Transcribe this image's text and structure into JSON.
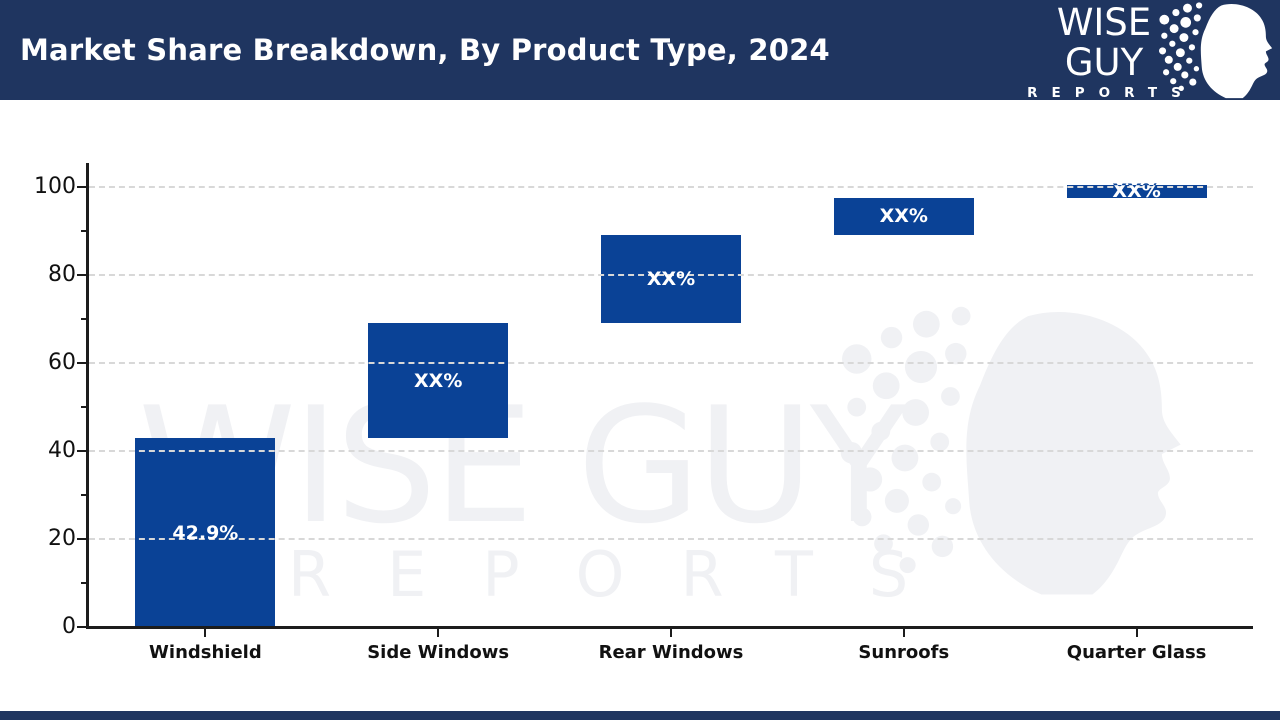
{
  "header": {
    "title": "Market Share Breakdown, By Product Type, 2024"
  },
  "logo": {
    "line1": "WISE GUY",
    "line2": "REPORTS"
  },
  "watermark": {
    "line1": "WISE GUY",
    "line2": "REPORTS"
  },
  "colors": {
    "header_bg": "#1f3560",
    "footer_bg": "#1f3560",
    "bar": "#0a4296",
    "grid": "#d8d8d8",
    "axis": "#1c1c1c",
    "bar_label": "#ffffff",
    "watermark": "#f0f1f4"
  },
  "chart_data": {
    "type": "bar",
    "subtype": "waterfall",
    "title": "Market Share Breakdown, By Product Type, 2024",
    "categories": [
      "Windshield",
      "Side Windows",
      "Rear Windows",
      "Sunroofs",
      "Quarter Glass"
    ],
    "segments": [
      {
        "category": "Windshield",
        "start": 0,
        "end": 42.9,
        "label": "42.9%"
      },
      {
        "category": "Side Windows",
        "start": 42.9,
        "end": 69.1,
        "label": "XX%"
      },
      {
        "category": "Rear Windows",
        "start": 69.1,
        "end": 89.1,
        "label": "XX%"
      },
      {
        "category": "Sunroofs",
        "start": 89.1,
        "end": 97.6,
        "label": "XX%"
      },
      {
        "category": "Quarter Glass",
        "start": 97.6,
        "end": 100.4,
        "label": "XX%"
      }
    ],
    "yticks": [
      0,
      20,
      40,
      60,
      80,
      100
    ],
    "minor_yticks": [
      10,
      30,
      50,
      70,
      90
    ],
    "ylim": [
      0,
      105
    ],
    "grid": "dashed-horizontal",
    "legend_position": "none"
  }
}
